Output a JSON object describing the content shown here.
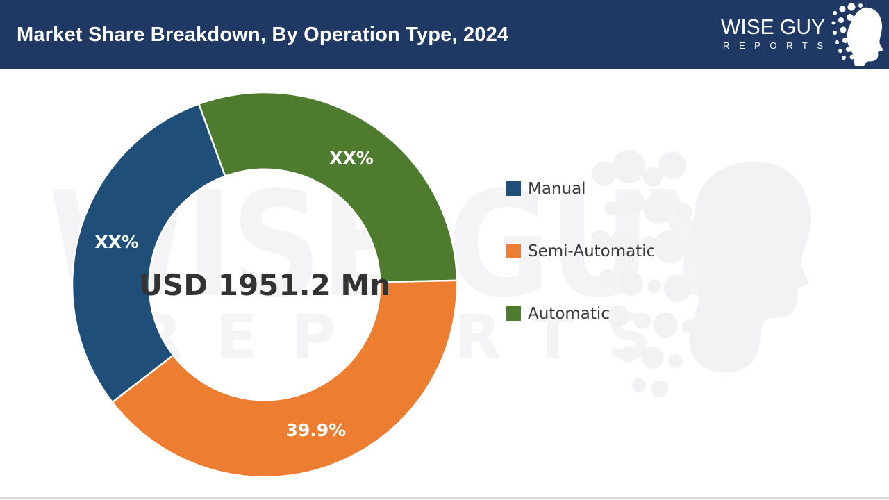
{
  "header": {
    "title": "Market Share Breakdown, By Operation Type, 2024",
    "logo": {
      "line1": "WISE GUY",
      "line2": "REPORTS"
    }
  },
  "watermark": {
    "line1": "WISE GUY",
    "line2": "REPORTS"
  },
  "chart_data": {
    "type": "pie",
    "subtype": "donut",
    "title": "Market Share Breakdown, By Operation Type, 2024",
    "center_label": "USD 1951.2 Mn",
    "hole_ratio": 0.6,
    "start_angle_deg_from_top": -20,
    "direction": "clockwise",
    "segments": [
      {
        "name": "Automatic",
        "value_pct": 30.2,
        "data_label": "XX%",
        "color": "#4e7b2d"
      },
      {
        "name": "Semi-Automatic",
        "value_pct": 39.9,
        "data_label": "39.9%",
        "color": "#ed7d31"
      },
      {
        "name": "Manual",
        "value_pct": 29.9,
        "data_label": "XX%",
        "color": "#1f4e79"
      }
    ],
    "legend_items": [
      {
        "label": "Manual",
        "color": "#1f4e79"
      },
      {
        "label": "Semi-Automatic",
        "color": "#ed7d31"
      },
      {
        "label": "Automatic",
        "color": "#4e7b2d"
      }
    ],
    "legend_position": "right"
  },
  "colors": {
    "header_bg": "#203864",
    "manual_blue": "#1f4e79",
    "semi_automatic_orange": "#ed7d31",
    "automatic_green": "#4e7b2d",
    "legend_text": "#3a3a3a",
    "center_text": "#333333",
    "watermark": "#f4f4f6",
    "bottom_strip": "#d9d9d9"
  }
}
